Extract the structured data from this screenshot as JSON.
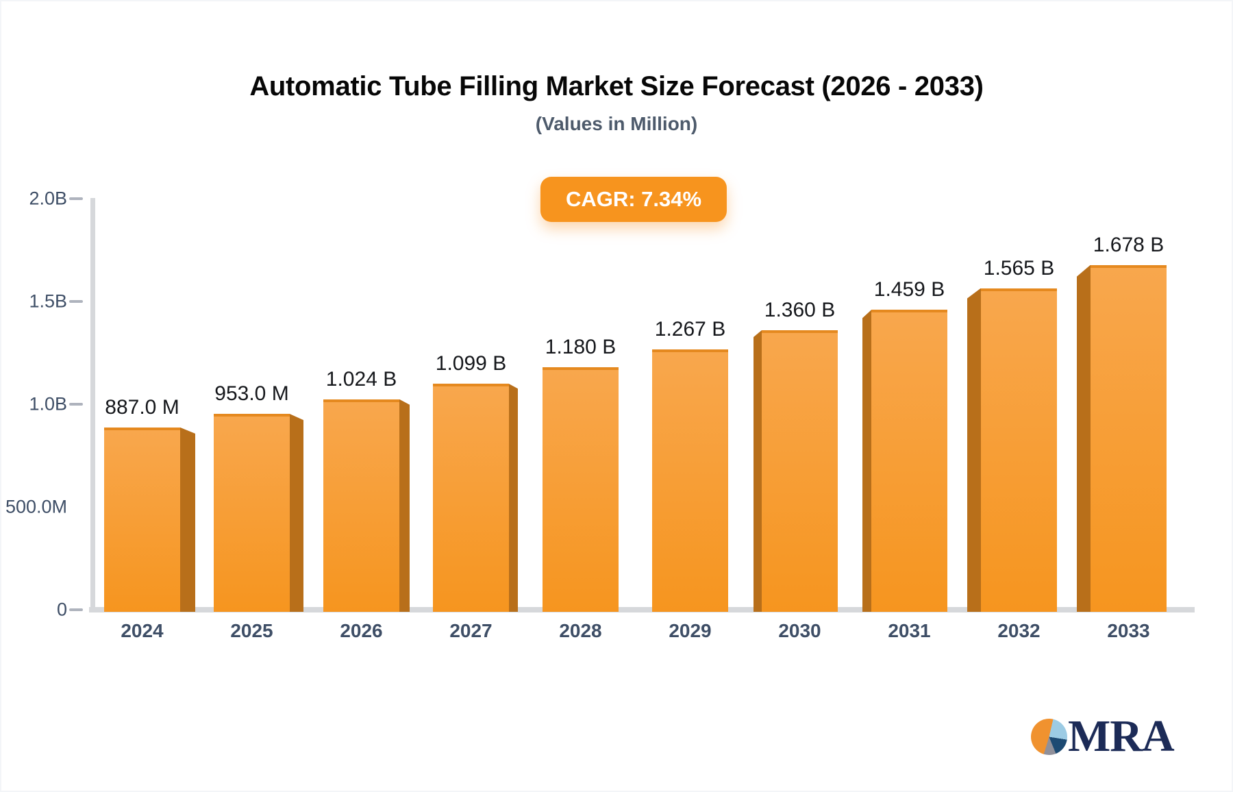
{
  "title": "Automatic Tube Filling Market Size Forecast (2026 - 2033)",
  "subtitle": "(Values in Million)",
  "cagr_badge": "CAGR: 7.34%",
  "logo": {
    "text": "MRA",
    "icon": "pie-chart-icon"
  },
  "colors": {
    "accent_orange": "#f7941e",
    "bar_gradient_top": "#f8a74d",
    "bar_gradient_bottom": "#f6951f",
    "bar_top_edge": "#e5891f",
    "bar_side_shadow": "#b86f1a",
    "axis_gray": "#d6d8db",
    "tick_gray": "#aeb3bd",
    "axis_label_color": "#3e4e66",
    "value_label_color": "#15171b",
    "title_black": "#070707",
    "subtitle_gray": "#4d5a6b",
    "logo_navy": "#1c2b57",
    "logo_pie_orange": "#f0922f",
    "logo_pie_lightblue": "#9ccbe4",
    "logo_pie_navy": "#1d4a73",
    "logo_pie_gray": "#90909a"
  },
  "chart_data": {
    "type": "bar",
    "title": "Automatic Tube Filling Market Size Forecast (2026 - 2033)",
    "subtitle": "(Values in Million)",
    "cagr_percent": 7.34,
    "categories": [
      "2024",
      "2025",
      "2026",
      "2027",
      "2028",
      "2029",
      "2030",
      "2031",
      "2032",
      "2033"
    ],
    "values_million": [
      887.0,
      953.0,
      1024,
      1099,
      1180,
      1267,
      1360,
      1459,
      1565,
      1678
    ],
    "value_labels": [
      "887.0 M",
      "953.0 M",
      "1.024 B",
      "1.099 B",
      "1.180 B",
      "1.267 B",
      "1.360 B",
      "1.459 B",
      "1.565 B",
      "1.678 B"
    ],
    "xlabel": "",
    "ylabel": "",
    "ylim": [
      0,
      2000
    ],
    "y_ticks": [
      {
        "label": "2.0B",
        "value_million": 2000,
        "dash": true
      },
      {
        "label": "1.5B",
        "value_million": 1500,
        "dash": true
      },
      {
        "label": "1.0B",
        "value_million": 1000,
        "dash": true
      },
      {
        "label": "500.0M",
        "value_million": 500,
        "dash": false
      },
      {
        "label": "0",
        "value_million": 0,
        "dash": true
      }
    ],
    "grid": false,
    "legend": "none",
    "bar_3d_effect": {
      "side": [
        "right",
        "right",
        "right",
        "right",
        "none",
        "none",
        "left",
        "left",
        "left",
        "left"
      ],
      "depth": [
        22,
        20,
        15,
        13,
        0,
        0,
        12,
        13,
        20,
        20
      ],
      "slant": [
        9,
        9,
        8,
        7,
        0,
        0,
        10,
        12,
        15,
        17
      ]
    }
  }
}
